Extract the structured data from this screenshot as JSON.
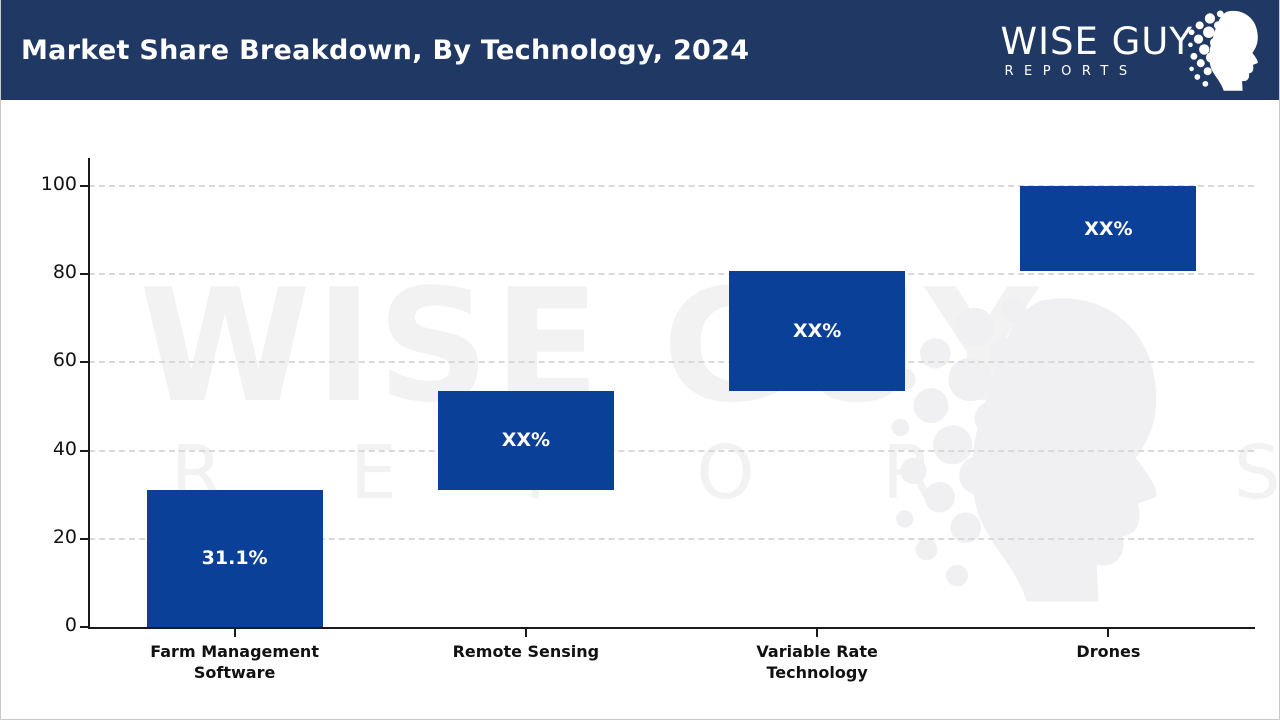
{
  "page": {
    "background": "#ffffff",
    "border_color": "#c9c9c9"
  },
  "header": {
    "title": "Market Share Breakdown, By Technology, 2024",
    "background_color": "#203864",
    "text_color": "#ffffff",
    "logo": {
      "wordmark": "WISE GUY",
      "subtitle": "REPORTS"
    }
  },
  "watermark": {
    "wordmark": "WISE GUY",
    "subtitle": "R E P O R T S"
  },
  "chart_data": {
    "type": "bar",
    "variant": "waterfall",
    "title": "Market Share Breakdown, By Technology, 2024",
    "categories": [
      "Farm Management Software",
      "Remote Sensing",
      "Variable Rate Technology",
      "Drones"
    ],
    "categories_display": [
      [
        "Farm Management",
        "Software"
      ],
      [
        "Remote Sensing"
      ],
      [
        "Variable Rate",
        "Technology"
      ],
      [
        "Drones"
      ]
    ],
    "segments": [
      {
        "category": "Farm Management Software",
        "start": 0,
        "end": 31.1,
        "label": "31.1%"
      },
      {
        "category": "Remote Sensing",
        "start": 31.1,
        "end": 53.6,
        "label": "XX%"
      },
      {
        "category": "Variable Rate Technology",
        "start": 53.6,
        "end": 80.7,
        "label": "XX%"
      },
      {
        "category": "Drones",
        "start": 80.7,
        "end": 100,
        "label": "XX%"
      }
    ],
    "y_ticks": [
      0,
      20,
      40,
      60,
      80,
      100
    ],
    "ylim": [
      0,
      106
    ],
    "xlabel": "",
    "ylabel": "",
    "bar_color": "#0b4098",
    "bar_label_color": "#ffffff",
    "grid": {
      "horizontal": true,
      "style": "dashed",
      "color": "#d9d9d9"
    },
    "axis_color": "#1a1a1a",
    "legend": "none"
  }
}
